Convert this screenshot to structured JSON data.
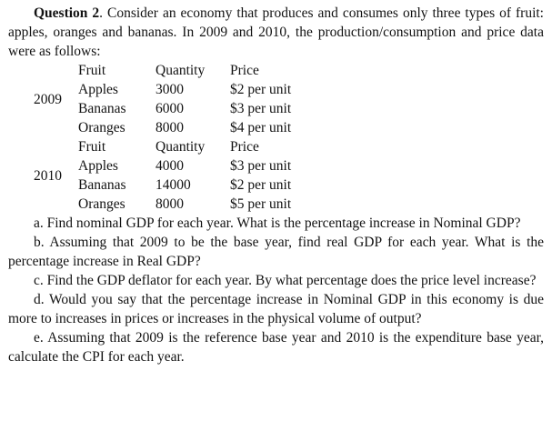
{
  "document": {
    "question_label": "Question 2",
    "intro_rest": ". Consider an economy that produces and consumes only three types of fruit: apples, oranges and bananas. In 2009 and 2010, the production/consumption and price data were as follows:",
    "table": {
      "groups": [
        {
          "year": "2009",
          "headers": [
            "Fruit",
            "Quantity",
            "Price"
          ],
          "rows": [
            [
              "Apples",
              "3000",
              "$2 per unit"
            ],
            [
              "Bananas",
              "6000",
              "$3 per unit"
            ],
            [
              "Oranges",
              "8000",
              "$4 per unit"
            ]
          ]
        },
        {
          "year": "2010",
          "headers": [
            "Fruit",
            "Quantity",
            "Price"
          ],
          "rows": [
            [
              "Apples",
              "4000",
              "$3 per unit"
            ],
            [
              "Bananas",
              "14000",
              "$2 per unit"
            ],
            [
              "Oranges",
              "8000",
              "$5 per unit"
            ]
          ]
        }
      ]
    },
    "parts": [
      "a.  Find nominal GDP for each year.  What is the percentage increase in Nominal GDP?",
      "b.  Assuming that 2009 to be the base year, find real GDP for each year. What is the percentage increase in Real GDP?",
      "c.  Find the GDP deflator for each year.  By what percentage does the price level increase?",
      "d.  Would you say that the percentage increase in Nominal GDP in this economy is due more to increases in prices or increases in the physical volume of output?",
      "e.  Assuming that 2009 is the reference base year and 2010 is the expenditure base year, calculate the CPI for each year."
    ]
  }
}
